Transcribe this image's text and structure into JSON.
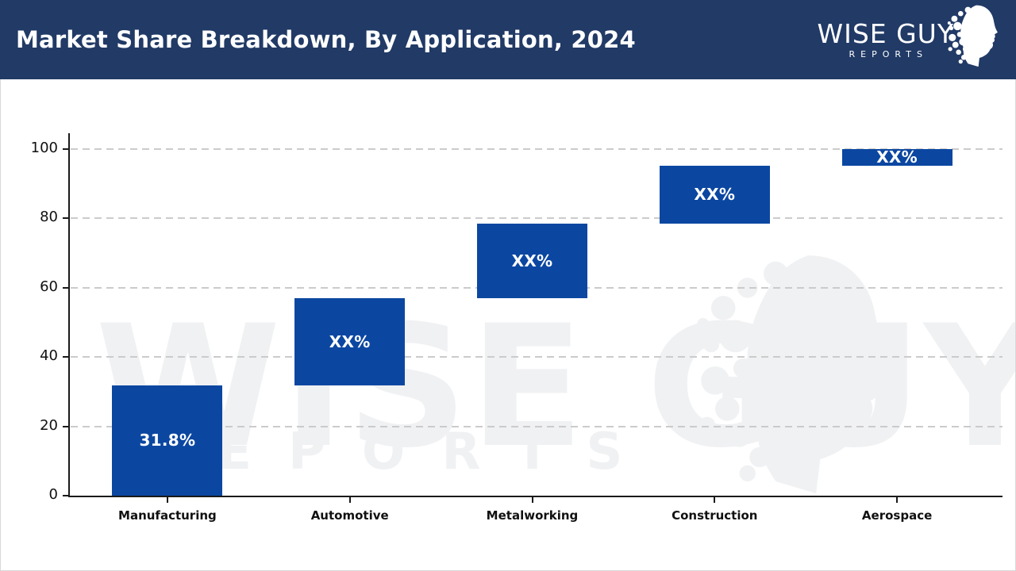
{
  "header": {
    "title": "Market Share Breakdown, By Application, 2024",
    "logo": {
      "line1": "WISE GUY",
      "line2": "REPORTS"
    }
  },
  "watermark": {
    "big_text": "WISE GUY",
    "sub_text": "REPORTS"
  },
  "chart_data": {
    "type": "bar",
    "variant": "floating-waterfall",
    "title": "Market Share Breakdown, By Application, 2024",
    "categories": [
      "Manufacturing",
      "Automotive",
      "Metalworking",
      "Construction",
      "Aerospace"
    ],
    "segments": [
      {
        "category": "Manufacturing",
        "start": 0,
        "end": 31.8,
        "label": "31.8%"
      },
      {
        "category": "Automotive",
        "start": 31.8,
        "end": 57,
        "label": "XX%"
      },
      {
        "category": "Metalworking",
        "start": 57,
        "end": 78.5,
        "label": "XX%"
      },
      {
        "category": "Construction",
        "start": 78.5,
        "end": 95,
        "label": "XX%"
      },
      {
        "category": "Aerospace",
        "start": 95,
        "end": 100,
        "label": "XX%"
      }
    ],
    "yticks": [
      0,
      20,
      40,
      60,
      80,
      100
    ],
    "ylim": [
      0,
      104
    ],
    "xlabel": "",
    "ylabel": "",
    "grid": "horizontal-dashed",
    "legend": "none",
    "bar_color": "#0b47a1",
    "bar_label_color": "#ffffff"
  },
  "colors": {
    "header_bg": "#213a66",
    "header_text": "#ffffff",
    "bar": "#0b47a1",
    "axis": "#1a1a1a",
    "gridline": "#cbcbcb",
    "tick_label": "#111111",
    "watermark": "#f0f1f3",
    "page_bg": "#ffffff",
    "frame_border": "#d9d9d9"
  }
}
